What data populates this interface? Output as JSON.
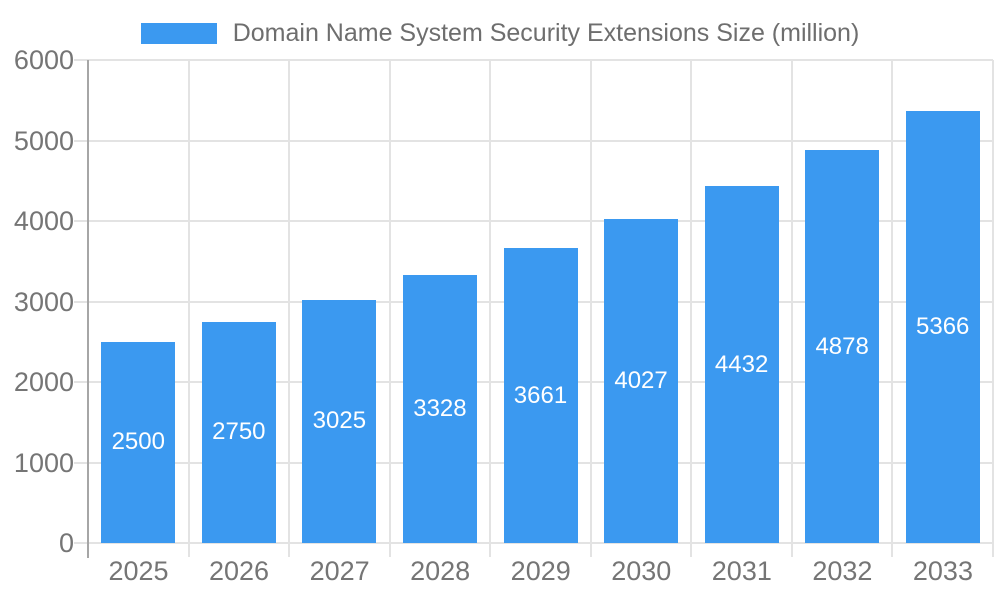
{
  "chart_data": {
    "type": "bar",
    "legend": {
      "label": "Domain Name System Security Extensions Size (million)",
      "position": "top"
    },
    "categories": [
      "2025",
      "2026",
      "2027",
      "2028",
      "2029",
      "2030",
      "2031",
      "2032",
      "2033"
    ],
    "series": [
      {
        "name": "Domain Name System Security Extensions Size (million)",
        "values": [
          2500,
          2750,
          3025,
          3328,
          3661,
          4027,
          4432,
          4878,
          5366
        ]
      }
    ],
    "bar_labels": [
      "2500",
      "2750",
      "3025",
      "3328",
      "3661",
      "4027",
      "4432",
      "4878",
      "5366"
    ],
    "xlabel": "",
    "ylabel": "",
    "ylim": [
      0,
      6000
    ],
    "yticks": [
      0,
      1000,
      2000,
      3000,
      4000,
      5000,
      6000
    ],
    "grid": true,
    "bar_labels_visible": true
  },
  "colors": {
    "bar": "#3B99F0",
    "bar_label": "#FFFFFF",
    "axis_label": "#757575",
    "legend_text": "#6E6E6E",
    "gridline": "#E3E3E3",
    "axis_line": "#A6A6A6",
    "background": "#FFFFFF"
  }
}
